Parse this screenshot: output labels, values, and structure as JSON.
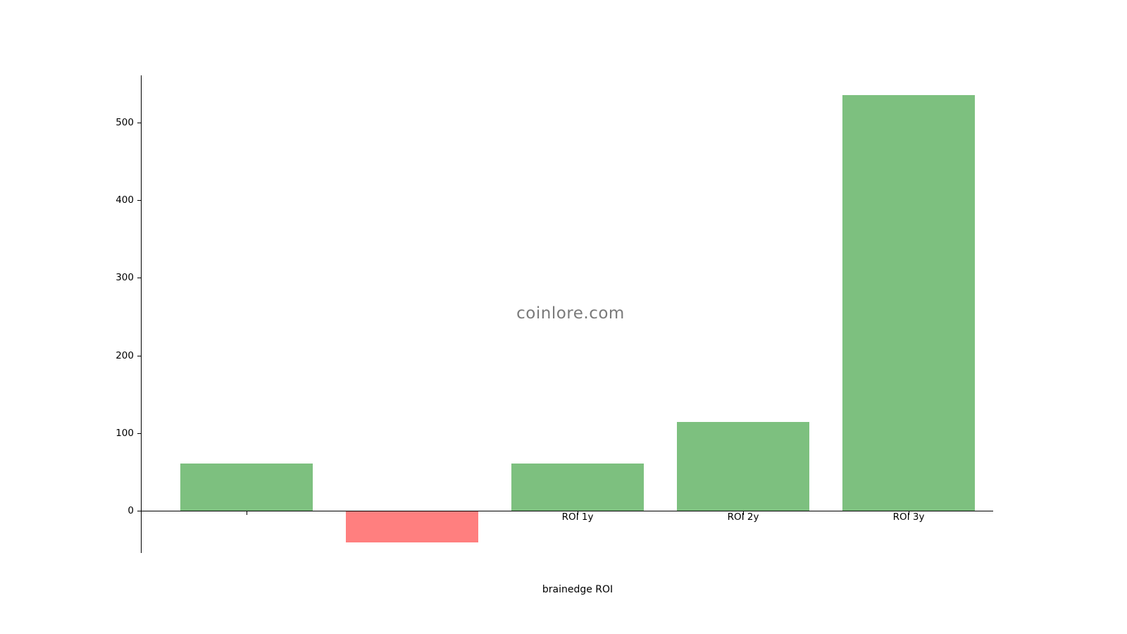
{
  "watermark": "coinlore.com",
  "chart_data": {
    "type": "bar",
    "title": "",
    "xlabel": "brainedge ROI",
    "ylabel": "",
    "categories": [
      "",
      "",
      "ROI 1y",
      "ROI 2y",
      "ROI 3y"
    ],
    "values": [
      61,
      -40,
      61,
      114,
      535
    ],
    "yticks": [
      0,
      100,
      200,
      300,
      400,
      500
    ],
    "ylim": [
      -54,
      561
    ],
    "grid": false,
    "legend": "none",
    "bar_width_fraction": 0.8,
    "colors": {
      "positive": "#7dc07f",
      "negative": "#ff7f7f",
      "axis": "#000000",
      "text": "#000000",
      "watermark": "#7a7a7a"
    }
  }
}
